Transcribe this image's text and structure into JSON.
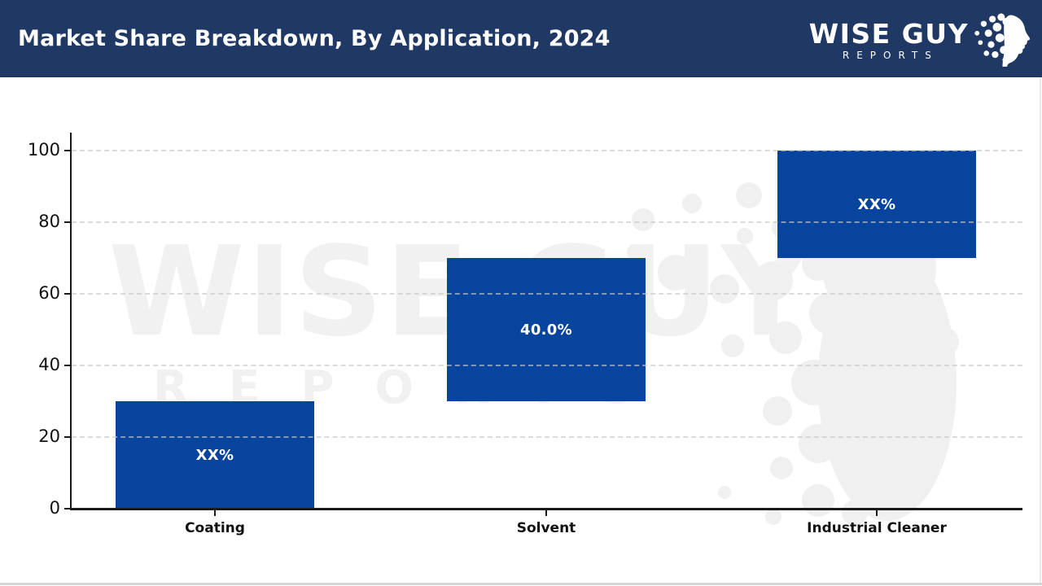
{
  "header": {
    "title": "Market Share Breakdown, By Application, 2024",
    "background_color": "#1f3864"
  },
  "logo": {
    "name_top": "WISE GUY",
    "name_bottom": "REPORTS"
  },
  "watermark": {
    "text_top": "WISE GUY",
    "text_bottom": "REPORTS"
  },
  "chart_data": {
    "type": "bar",
    "subtype": "floating-segment (waterfall style)",
    "title": "Market Share Breakdown, By Application, 2024",
    "categories": [
      "Coating",
      "Solvent",
      "Industrial Cleaner"
    ],
    "series": [
      {
        "name": "Market share (%)",
        "segments": [
          {
            "category": "Coating",
            "from": 0,
            "to": 30,
            "label": "XX%"
          },
          {
            "category": "Solvent",
            "from": 30,
            "to": 70,
            "label": "40.0%"
          },
          {
            "category": "Industrial Cleaner",
            "from": 70,
            "to": 100,
            "label": "XX%"
          }
        ]
      }
    ],
    "xlabel": "",
    "ylabel": "",
    "ylim": [
      0,
      100
    ],
    "yticks": [
      0,
      20,
      40,
      60,
      80,
      100
    ],
    "grid": "horizontal dashed",
    "legend": "none",
    "bar_color": "#07449e",
    "bar_label_color": "#ffffff",
    "axis_color": "#1a1a1a",
    "grid_color": "#c7c7c7"
  }
}
